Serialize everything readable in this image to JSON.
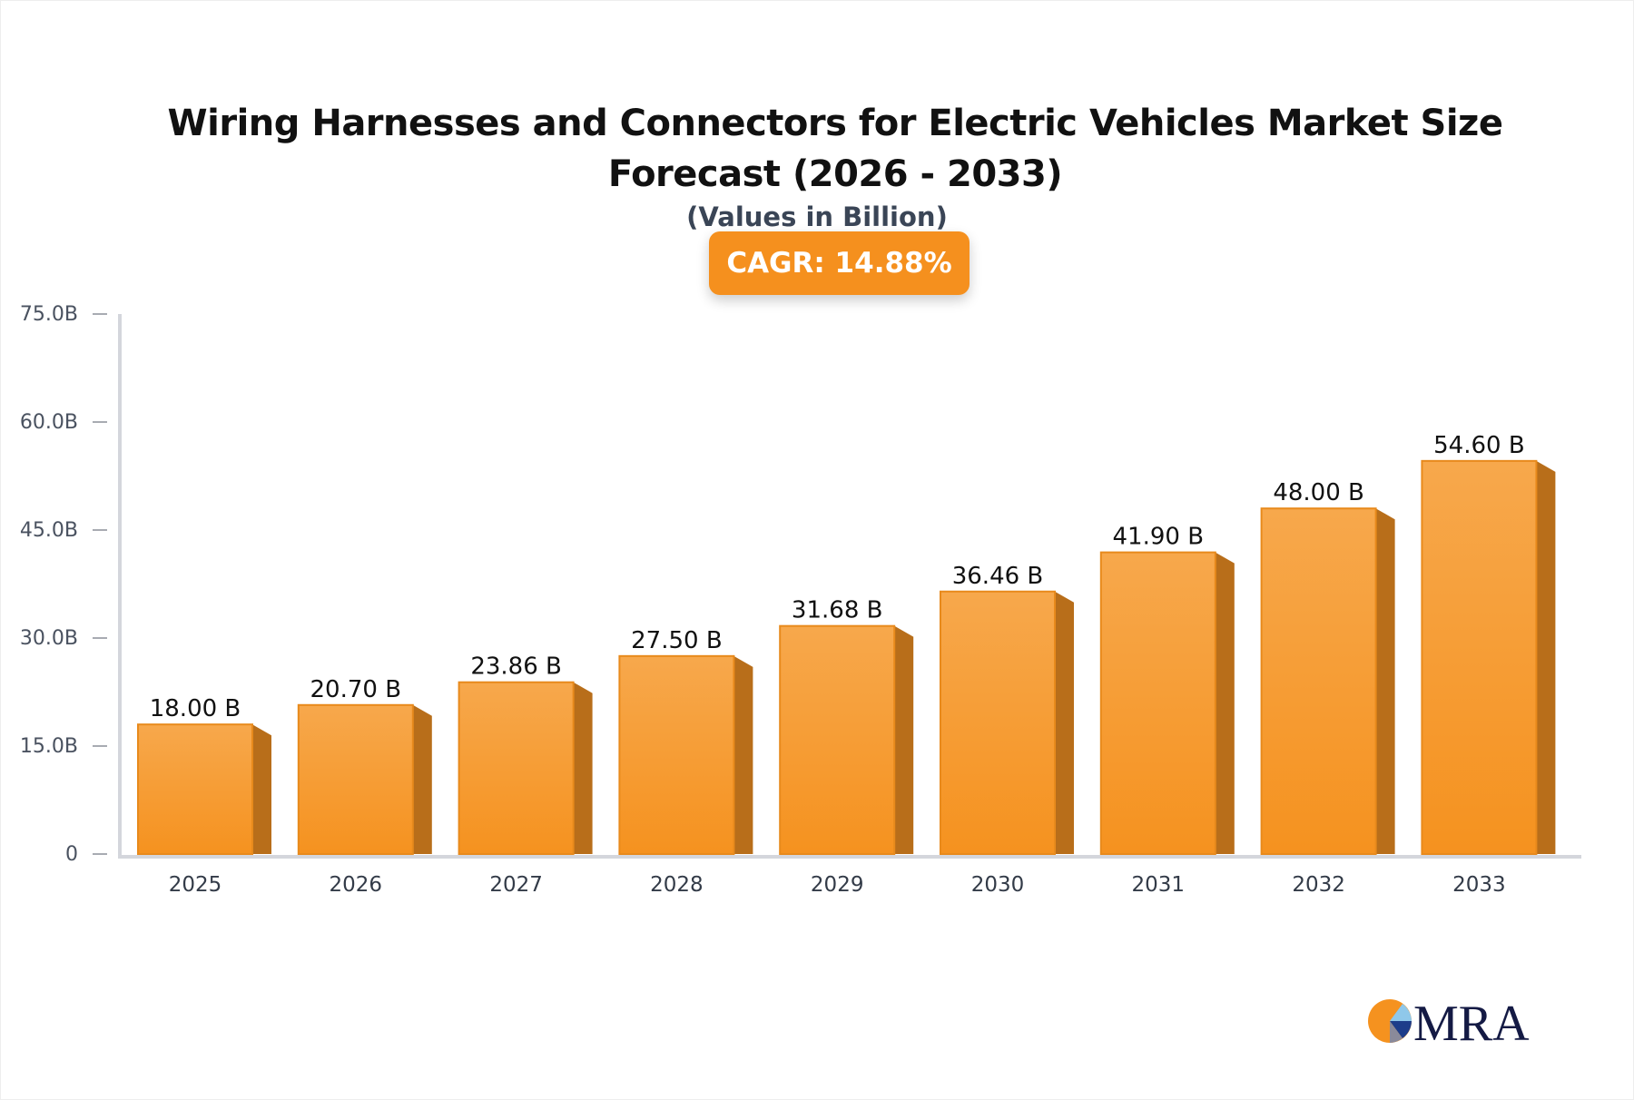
{
  "chart_data": {
    "type": "bar",
    "title": "Wiring Harnesses and Connectors for Electric Vehicles Market Size Forecast (2026 - 2033)",
    "subtitle": "(Values in Billion)",
    "annotation": "CAGR: 14.88%",
    "categories": [
      "2025",
      "2026",
      "2027",
      "2028",
      "2029",
      "2030",
      "2031",
      "2032",
      "2033"
    ],
    "values": [
      18.0,
      20.7,
      23.86,
      27.5,
      31.68,
      36.46,
      41.9,
      48.0,
      54.6
    ],
    "data_labels": [
      "18.00 B",
      "20.70 B",
      "23.86 B",
      "27.50 B",
      "31.68 B",
      "36.46 B",
      "41.90 B",
      "48.00 B",
      "54.60 B"
    ],
    "ylim": [
      0,
      75
    ],
    "yticks": [
      0,
      15,
      30,
      45,
      60,
      75
    ],
    "ytick_labels": [
      "0",
      "15.0B",
      "30.0B",
      "45.0B",
      "60.0B",
      "75.0B"
    ],
    "xlabel": "",
    "ylabel": "",
    "grid": false,
    "bar_color": "#f5901e",
    "bar_side_color": "#b86e1a"
  },
  "logo": {
    "text": "MRA"
  }
}
